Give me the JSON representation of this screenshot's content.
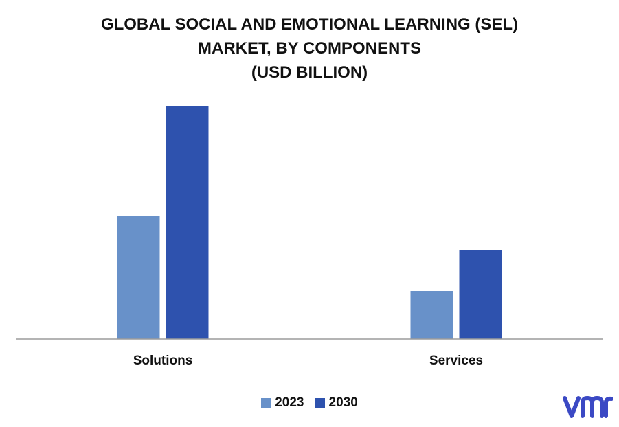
{
  "title": {
    "line1": "GLOBAL SOCIAL AND EMOTIONAL LEARNING (SEL)",
    "line2": "MARKET, BY COMPONENTS",
    "line3": "(USD BILLION)"
  },
  "colors": {
    "series_2023": "#6891c9",
    "series_2030": "#2e52ae",
    "axis": "#9c9c9c",
    "logo": "#3b49c4"
  },
  "chart_data": {
    "type": "bar",
    "title": "GLOBAL SOCIAL AND EMOTIONAL LEARNING (SEL) MARKET, BY COMPONENTS (USD BILLION)",
    "categories": [
      "Solutions",
      "Services"
    ],
    "series": [
      {
        "name": "2023",
        "values": [
          1.8,
          0.7
        ]
      },
      {
        "name": "2030",
        "values": [
          3.4,
          1.3
        ]
      }
    ],
    "ylim": [
      0,
      3.4
    ],
    "grid": false,
    "legend": "bottom-center",
    "xlabel": "",
    "ylabel": ""
  },
  "logo": {
    "icon": "vmr-logo"
  }
}
